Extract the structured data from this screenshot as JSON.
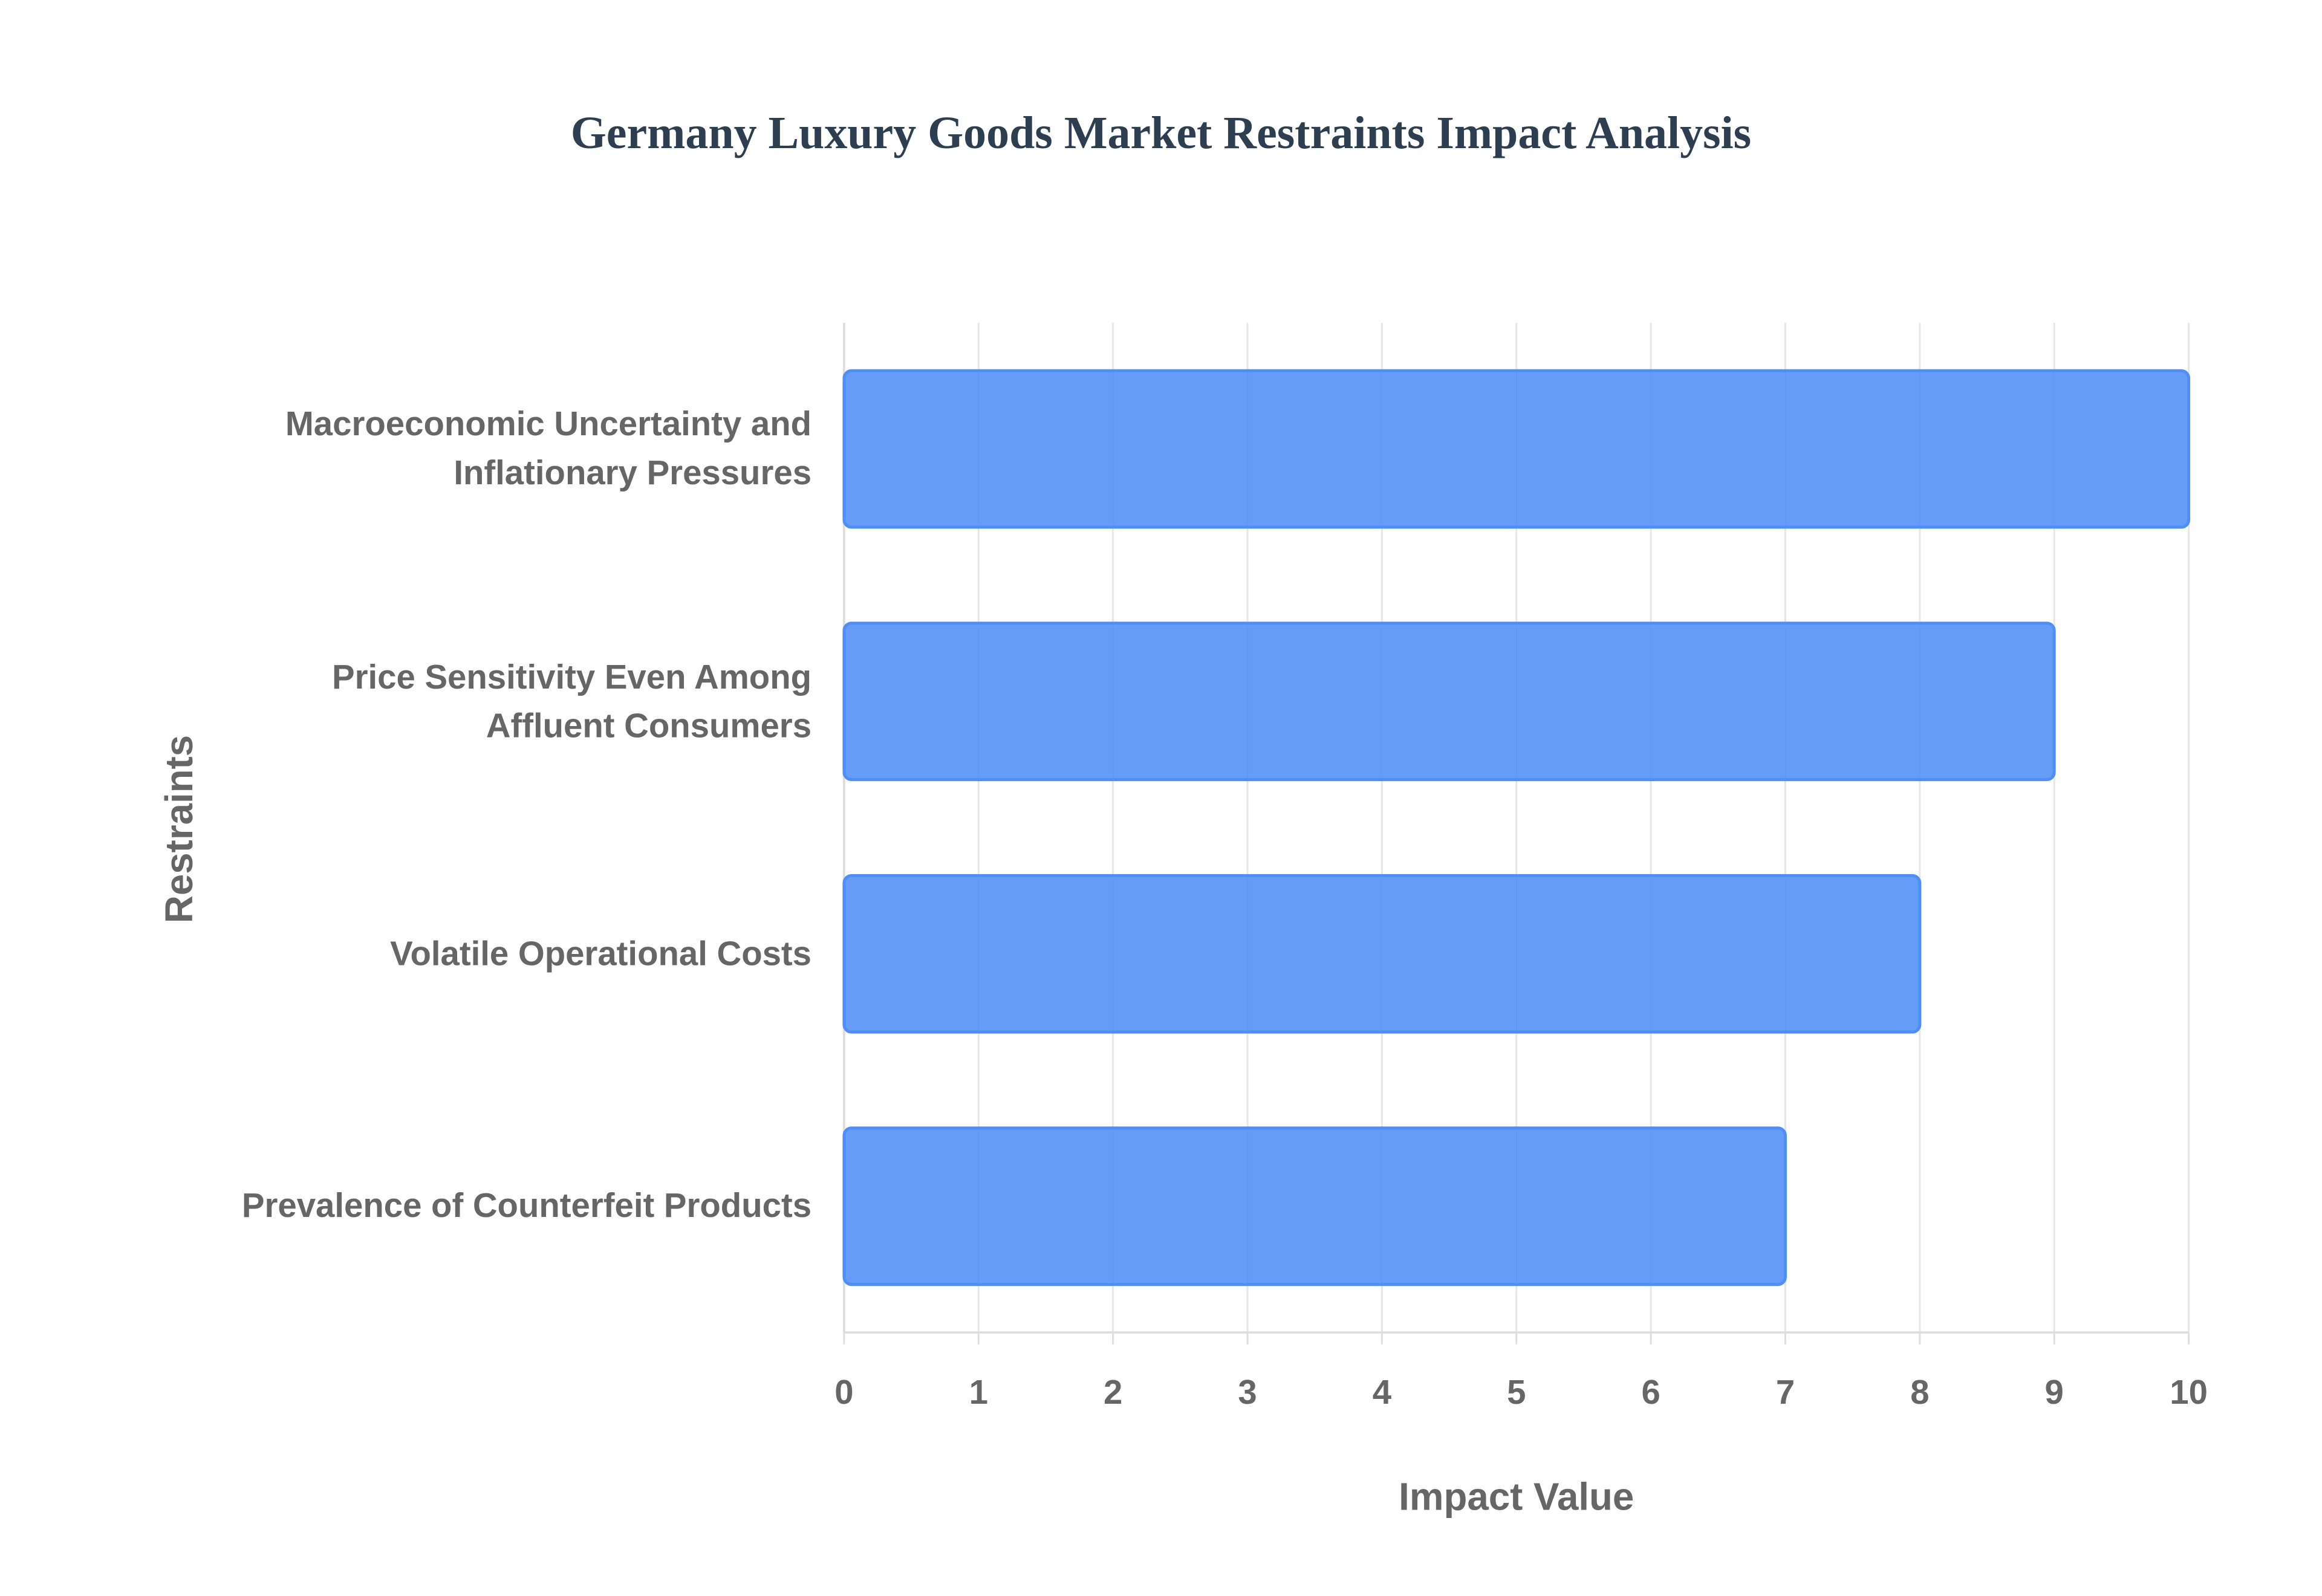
{
  "chart_data": {
    "type": "bar",
    "orientation": "horizontal",
    "title": "Germany Luxury Goods Market Restraints Impact Analysis",
    "x_label": "Impact Value",
    "y_label": "Restraints",
    "categories": [
      "Macroeconomic Uncertainty and Inflationary Pressures",
      "Price Sensitivity Even Among Affluent Consumers",
      "Volatile Operational Costs",
      "Prevalence of Counterfeit Products"
    ],
    "values": [
      10,
      9,
      8,
      7
    ],
    "color": "#4f8ef7",
    "xlim": [
      0,
      10
    ],
    "xticks": [
      0,
      1,
      2,
      3,
      4,
      5,
      6,
      7,
      8,
      9,
      10
    ],
    "grid": true
  }
}
